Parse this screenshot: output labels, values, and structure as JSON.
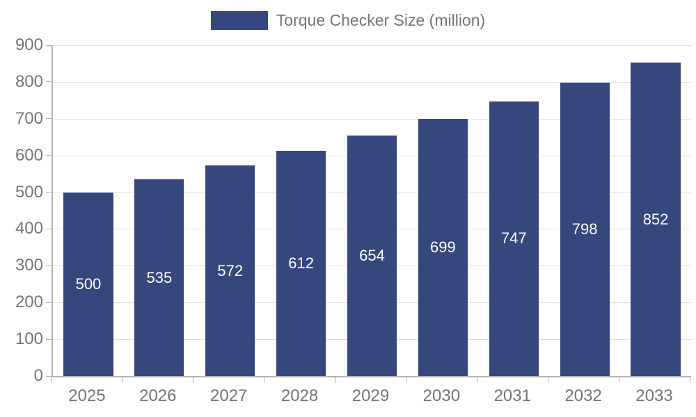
{
  "chart_data": {
    "type": "bar",
    "title": "",
    "xlabel": "",
    "ylabel": "",
    "legend": {
      "label": "Torque Checker Size (million)",
      "position": "top"
    },
    "categories": [
      "2025",
      "2026",
      "2027",
      "2028",
      "2029",
      "2030",
      "2031",
      "2032",
      "2033"
    ],
    "series": [
      {
        "name": "Torque Checker Size (million)",
        "values": [
          500,
          535,
          572,
          612,
          654,
          699,
          747,
          798,
          852
        ]
      }
    ],
    "ylim": [
      0,
      900
    ],
    "y_ticks": [
      0,
      100,
      200,
      300,
      400,
      500,
      600,
      700,
      800,
      900
    ],
    "grid": true,
    "bar_width_fraction": 0.7,
    "colors": {
      "bar": "#36477d",
      "bar_label": "#ffffff",
      "axis_text": "#757575",
      "grid_line": "#e0e0e0",
      "axis_line": "#b3b3b3",
      "background": "#ffffff"
    }
  }
}
